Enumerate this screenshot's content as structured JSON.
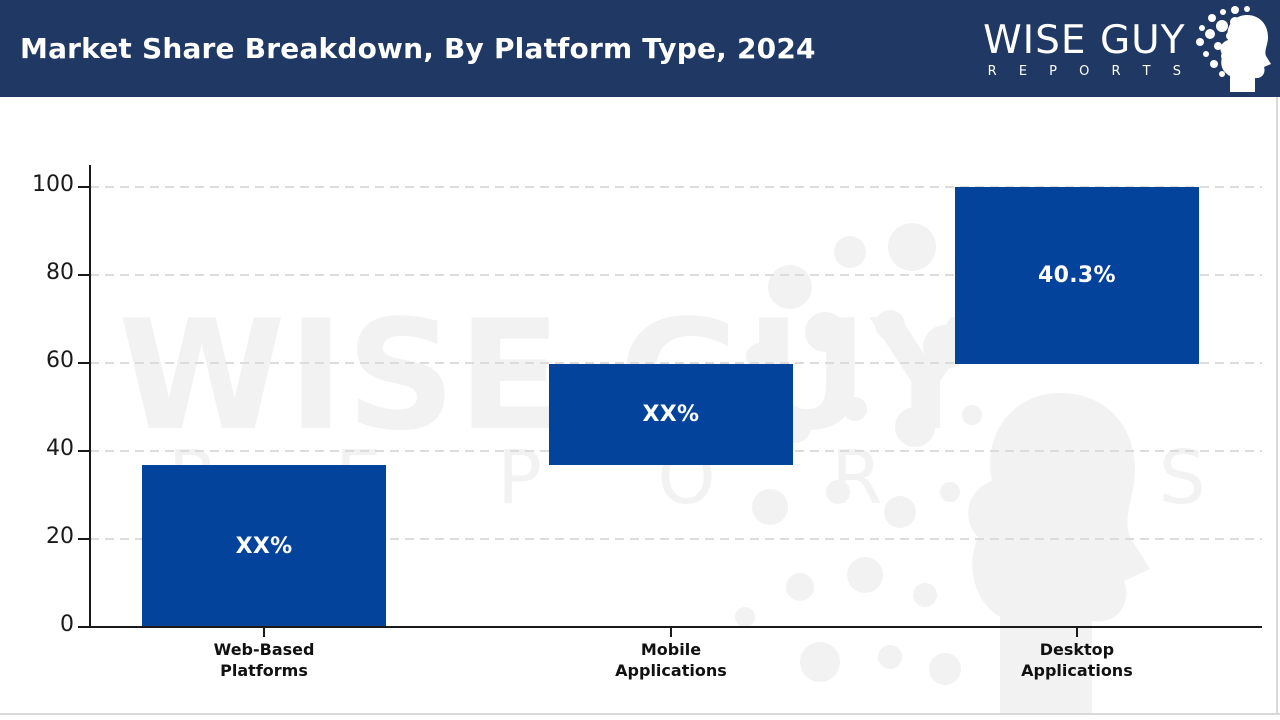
{
  "header": {
    "title": "Market Share Breakdown, By Platform Type, 2024",
    "bg_color": "#1F3864",
    "logo": {
      "word": "WISE GUY",
      "sub": "R E P O R T S"
    }
  },
  "watermark": {
    "line1": "WISE GUY",
    "line2": "REPORTS"
  },
  "chart_data": {
    "type": "bar",
    "variant": "waterfall",
    "title": "Market Share Breakdown, By Platform Type, 2024",
    "categories": [
      [
        "Web-Based",
        "Platforms"
      ],
      [
        "Mobile",
        "Applications"
      ],
      [
        "Desktop",
        "Applications"
      ]
    ],
    "bars": [
      {
        "category": "Web-Based Platforms",
        "start": 0,
        "end": 36.8,
        "value_label": "XX%"
      },
      {
        "category": "Mobile Applications",
        "start": 36.8,
        "end": 59.7,
        "value_label": "XX%"
      },
      {
        "category": "Desktop Applications",
        "start": 59.7,
        "end": 100,
        "value_label": "40.3%",
        "value": 40.3
      }
    ],
    "yticks": [
      0,
      20,
      40,
      60,
      80,
      100
    ],
    "ylim": [
      0,
      105
    ],
    "xlabel": "",
    "ylabel": "",
    "grid": "horizontal-dashed",
    "legend": "none",
    "bar_color": "#04439C",
    "bar_label_color": "#ffffff"
  }
}
